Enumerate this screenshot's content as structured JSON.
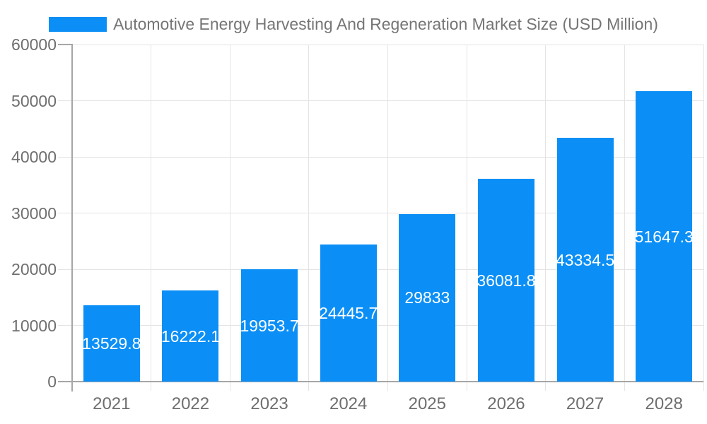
{
  "chart_data": {
    "type": "bar",
    "title": "Automotive Energy Harvesting And Regeneration Market Size (USD Million)",
    "categories": [
      "2021",
      "2022",
      "2023",
      "2024",
      "2025",
      "2026",
      "2027",
      "2028"
    ],
    "values": [
      13529.8,
      16222.1,
      19953.7,
      24445.7,
      29833,
      36081.8,
      43334.5,
      51647.3
    ],
    "value_labels": [
      "13529.8",
      "16222.1",
      "19953.7",
      "24445.7",
      "29833",
      "36081.8",
      "43334.5",
      "51647.3"
    ],
    "ylim": [
      0,
      60000
    ],
    "yticks": [
      0,
      10000,
      20000,
      30000,
      40000,
      50000,
      60000
    ],
    "ytick_labels": [
      "0",
      "10000",
      "20000",
      "30000",
      "40000",
      "50000",
      "60000"
    ],
    "xlabel": "",
    "ylabel": "",
    "legend_position": "top",
    "grid": true,
    "colors": {
      "bar": "#0b8ff6",
      "value_label": "#ffffff",
      "axis": "#a6a6a6",
      "gridline": "#e4e4e4",
      "tick_text": "#6e6e6e",
      "legend_text": "#757575",
      "background": "#ffffff"
    }
  }
}
